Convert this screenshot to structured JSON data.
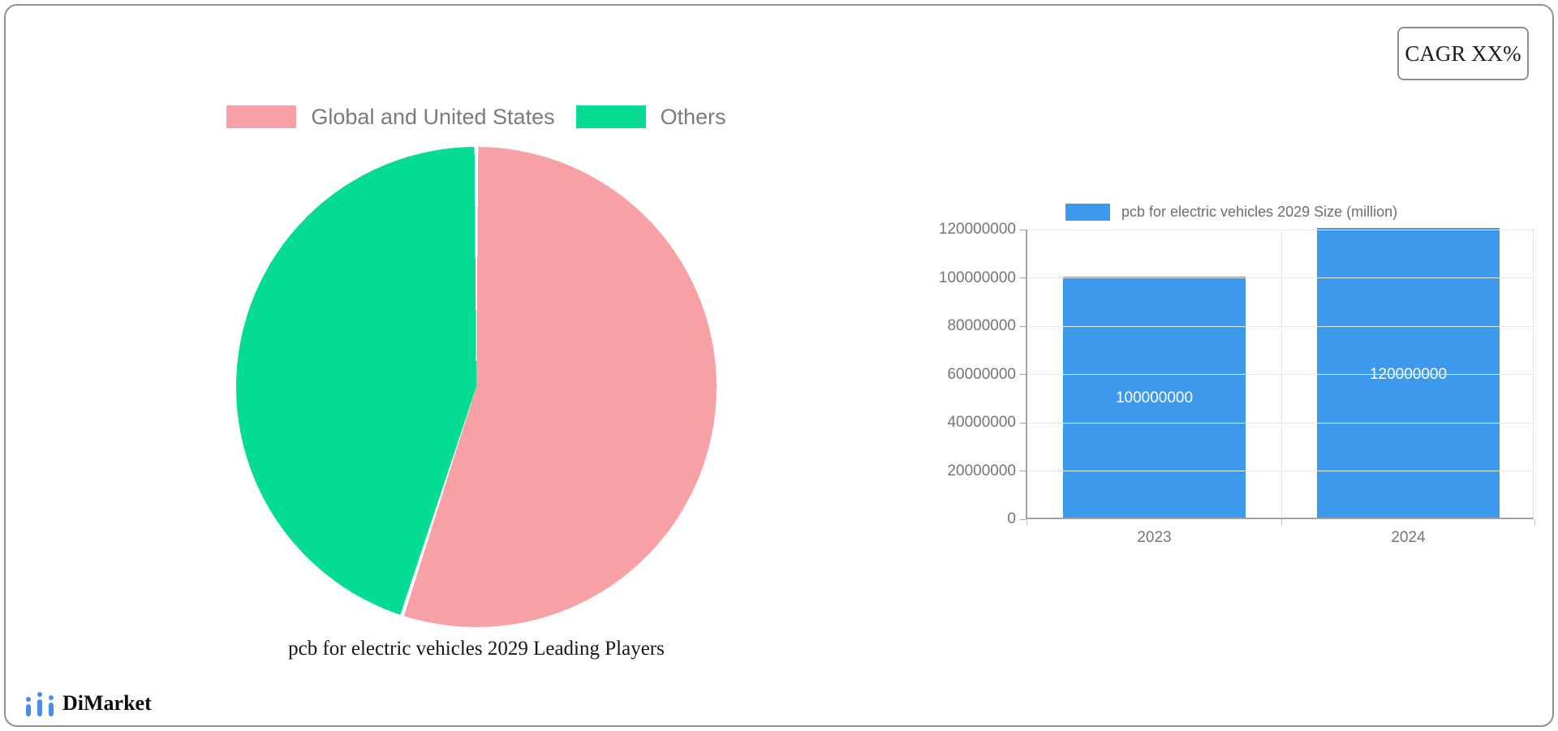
{
  "ui": {
    "cagr_label": "CAGR XX%",
    "logo_text": "DiMarket",
    "logo_icon_color": "#4a8fe7",
    "card_border_color": "#929292"
  },
  "chart_data": [
    {
      "type": "pie",
      "labels": [
        "Global and United States",
        "Others"
      ],
      "values": [
        55,
        45
      ],
      "colors": [
        "#F7A1A7",
        "#04DC93"
      ],
      "title": "pcb for electric vehicles 2029 Leading Players",
      "legend_position": "top",
      "start_angle": "top",
      "direction": "clockwise",
      "units": "percent-estimated-from-slice-angles",
      "slice_border_color": "#ffffff"
    },
    {
      "type": "bar",
      "categories": [
        "2023",
        "2024"
      ],
      "series": [
        {
          "name": "pcb for electric vehicles 2029 Size (million)",
          "values": [
            100000000,
            120000000
          ]
        }
      ],
      "data_labels": [
        "100000000",
        "120000000"
      ],
      "ytick_labels": [
        "0",
        "20000000",
        "40000000",
        "60000000",
        "80000000",
        "100000000",
        "120000000"
      ],
      "ylim": [
        0,
        120000000
      ],
      "ytick_step": 20000000,
      "bar_color": "#3C99EE",
      "value_label_color": "#ffffff",
      "grid": true,
      "legend_position": "top"
    }
  ]
}
